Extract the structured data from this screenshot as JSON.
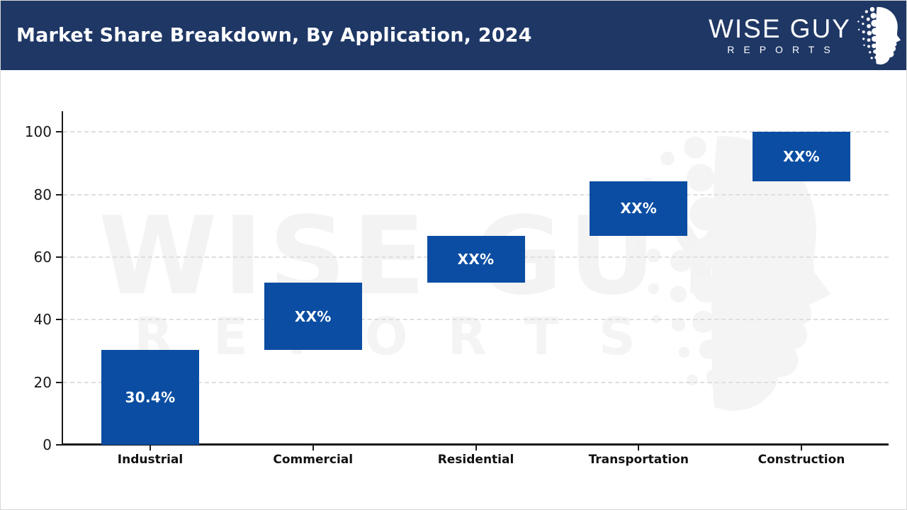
{
  "header": {
    "title": "Market Share Breakdown, By Application, 2024",
    "logo": {
      "line1": "WISE GUY",
      "line2": "REPORTS"
    }
  },
  "watermark": {
    "line1": "WISE GUY",
    "line2": "REPORTS"
  },
  "chart_data": {
    "type": "bar",
    "subtype": "waterfall",
    "title": "Market Share Breakdown, By Application, 2024",
    "categories": [
      "Industrial",
      "Commercial",
      "Residential",
      "Transportation",
      "Construction"
    ],
    "segments": [
      {
        "category": "Industrial",
        "start": 0,
        "end": 30.4,
        "value": 30.4,
        "label": "30.4%"
      },
      {
        "category": "Commercial",
        "start": 30.4,
        "end": 51.8,
        "value": 21.4,
        "label": "XX%"
      },
      {
        "category": "Residential",
        "start": 51.8,
        "end": 66.9,
        "value": 15.1,
        "label": "XX%"
      },
      {
        "category": "Transportation",
        "start": 66.9,
        "end": 84.3,
        "value": 17.4,
        "label": "XX%"
      },
      {
        "category": "Construction",
        "start": 84.3,
        "end": 100.0,
        "value": 15.7,
        "label": "XX%"
      }
    ],
    "y_ticks": [
      0,
      20,
      40,
      60,
      80,
      100
    ],
    "ylim": [
      0,
      105
    ],
    "xlabel": "",
    "ylabel": "",
    "grid": "horizontal-dashed",
    "legend": "none"
  },
  "colors": {
    "header_bg": "#1E3765",
    "bar": "#0B4DA2",
    "bar_label": "#FFFFFF",
    "axis": "#1A1A1A",
    "grid": "#DEDEDE",
    "watermark": "#F3F3F3"
  }
}
